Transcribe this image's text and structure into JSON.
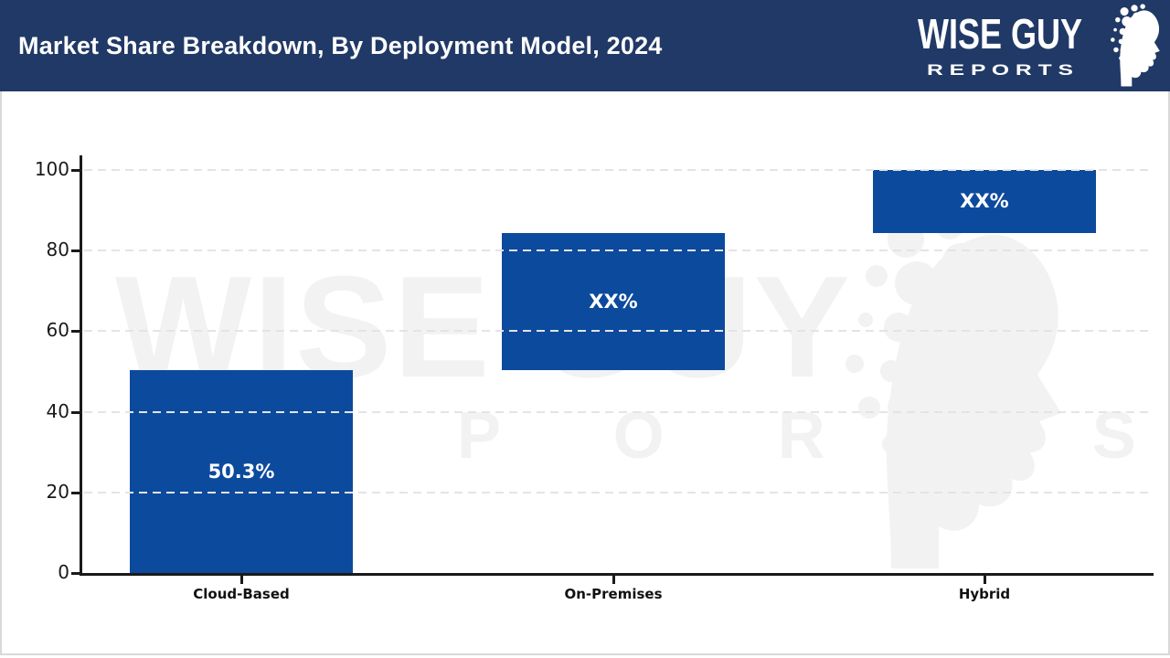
{
  "header": {
    "title": "Market Share Breakdown, By Deployment Model, 2024",
    "logo": {
      "name": "WISE GUY",
      "tagline": "R E P O R T S"
    }
  },
  "watermark": {
    "line1": "WISE GUY",
    "line2": "R E P O R T S"
  },
  "colors": {
    "header_bg": "#213966",
    "bar_blue": "#0c4a9d",
    "grid_line": "#e4e4e4",
    "axis": "#1a1a1a",
    "watermark_gray": "#f2f2f2",
    "frame_border": "#d9d9d9",
    "bar_label": "#ffffff"
  },
  "chart_data": {
    "type": "bar",
    "subtype": "cumulative-waterfall",
    "title": "Market Share Breakdown, By Deployment Model, 2024",
    "categories": [
      "Cloud-Based",
      "On-Premises",
      "Hybrid"
    ],
    "series": [
      {
        "name": "Cloud-Based",
        "segment_start": 0,
        "segment_end": 50.3,
        "value": 50.3,
        "label": "50.3%"
      },
      {
        "name": "On-Premises",
        "segment_start": 50.3,
        "segment_end": 84.4,
        "value": 34.1,
        "label": "XX%"
      },
      {
        "name": "Hybrid",
        "segment_start": 84.4,
        "segment_end": 100,
        "value": 15.6,
        "label": "XX%"
      }
    ],
    "xlabel": "",
    "ylabel": "",
    "yticks": [
      0,
      20,
      40,
      60,
      80,
      100
    ],
    "ylim": [
      0,
      104
    ],
    "grid": "horizontal-dashed",
    "grid_on_top": true,
    "legend": "none",
    "bar_color": "#0c4a9d",
    "label_color": "#ffffff"
  }
}
